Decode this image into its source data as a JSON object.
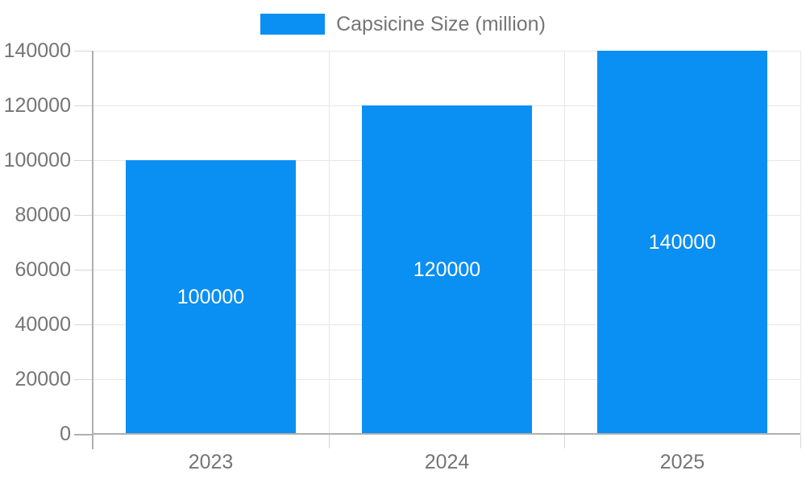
{
  "chart_data": {
    "type": "bar",
    "title": "",
    "xlabel": "",
    "ylabel": "",
    "legend": {
      "label": "Capsicine Size (million)",
      "position": "top-center",
      "swatch_color": "#0a8ff2"
    },
    "categories": [
      "2023",
      "2024",
      "2025"
    ],
    "series": [
      {
        "name": "Capsicine Size (million)",
        "values": [
          100000,
          120000,
          140000
        ]
      }
    ],
    "data_labels": [
      "100000",
      "120000",
      "140000"
    ],
    "y_ticks": [
      0,
      20000,
      40000,
      60000,
      80000,
      100000,
      120000,
      140000
    ],
    "ylim": [
      0,
      140000
    ],
    "grid": {
      "horizontal": true,
      "vertical_category_separators": true
    },
    "colors": {
      "bar": "#0a8ff2",
      "axis_line": "#b0b0b0",
      "gridline": "#e6e6e6",
      "tick_mark": "#d6d6d6",
      "axis_text": "#757575",
      "data_label_text": "#ffffff",
      "background": "#ffffff"
    }
  }
}
